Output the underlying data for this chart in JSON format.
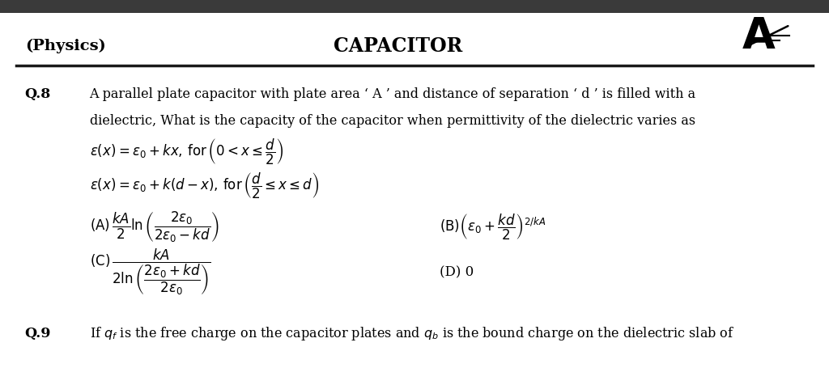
{
  "bg_color": "#ffffff",
  "header_left": "(Physics)",
  "header_center": "CAPACITOR",
  "q8_label": "Q.8",
  "q8_text1": "A parallel plate capacitor with plate area ‘ A ’ and distance of separation ‘ d ’ is filled with a",
  "q8_text2": "dielectric, What is the capacity of the capacitor when permittivity of the dielectric varies as",
  "eq1": "$\\varepsilon(x) = \\varepsilon_0 + kx,\\,\\mathrm{for}\\,\\left(0 < x \\leq \\dfrac{d}{2}\\right)$",
  "eq2": "$\\varepsilon(x) = \\varepsilon_0 + k(d-x),\\,\\mathrm{for}\\,\\left(\\dfrac{d}{2} \\leq x \\leq d\\right)$",
  "optA": "$\\mathrm{(A)}\\,\\dfrac{kA}{2}\\ln\\left(\\dfrac{2\\varepsilon_0}{2\\varepsilon_0 - kd}\\right)$",
  "optB": "$\\mathrm{(B)}\\left(\\varepsilon_0 + \\dfrac{kd}{2}\\right)^{2/kA}$",
  "optC": "$\\mathrm{(C)}\\,\\dfrac{kA}{2\\ln\\left(\\dfrac{2\\varepsilon_0 + kd}{2\\varepsilon_0}\\right)}$",
  "optD": "(D) 0",
  "q9_label": "Q.9",
  "q9_text": "If $q_f$ is the free charge on the capacitor plates and $q_b$ is the bound charge on the dielectric slab of",
  "top_bar_color": "#3a3a3a",
  "font_color": "#000000",
  "header_line_color": "#1a1a1a",
  "figwidth": 10.24,
  "figheight": 4.56,
  "dpi": 100
}
